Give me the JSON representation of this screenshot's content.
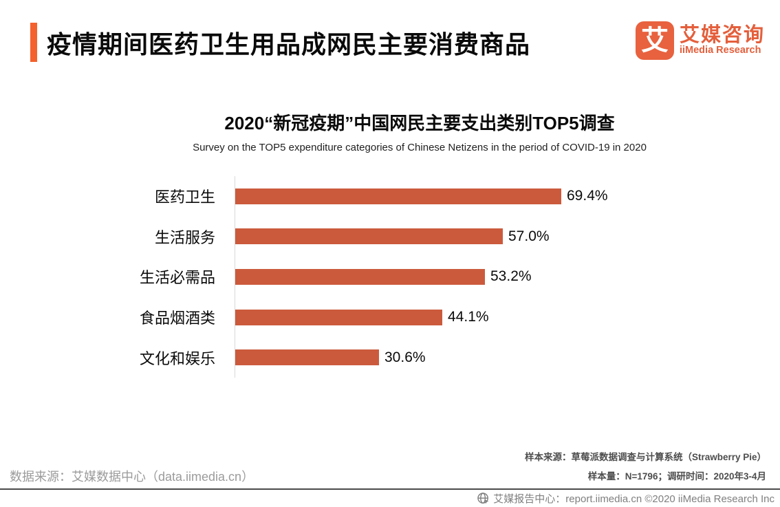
{
  "header": {
    "title": "疫情期间医药卫生用品成网民主要消费商品",
    "logo": {
      "icon_char": "艾",
      "name_cn": "艾媒咨询",
      "name_en": "iiMedia Research"
    }
  },
  "chart_data": {
    "type": "bar",
    "orientation": "horizontal",
    "title": "2020“新冠疫期”中国网民主要支出类别TOP5调查",
    "subtitle": "Survey on the TOP5 expenditure categories of Chinese Netizens in the period of COVID-19 in 2020",
    "categories": [
      "医药卫生",
      "生活服务",
      "生活必需品",
      "食品烟酒类",
      "文化和娱乐"
    ],
    "values": [
      69.4,
      57.0,
      53.2,
      44.1,
      30.6
    ],
    "value_labels": [
      "69.4%",
      "57.0%",
      "53.2%",
      "44.1%",
      "30.6%"
    ],
    "xlim": [
      0,
      80
    ],
    "grid": false,
    "legend": false,
    "bar_color": "#CB5A3C"
  },
  "footer": {
    "data_source": "数据来源：艾媒数据中心（data.iimedia.cn）",
    "sample_source": "样本来源：草莓派数据调查与计算系统（Strawberry Pie）",
    "sample_size": "样本量：N=1796；调研时间：2020年3-4月",
    "report_center": "艾媒报告中心：report.iimedia.cn  ©2020  iiMedia Research Inc"
  },
  "colors": {
    "accent_orange": "#F4612C",
    "logo_orange": "#E8623F",
    "bar_color": "#CB5A3C",
    "axis_line": "#D9D9D9",
    "light_gray_text": "#9B9B9B",
    "dark_gray_text": "#4D4D4D",
    "footer_text": "#7F7F7F"
  }
}
